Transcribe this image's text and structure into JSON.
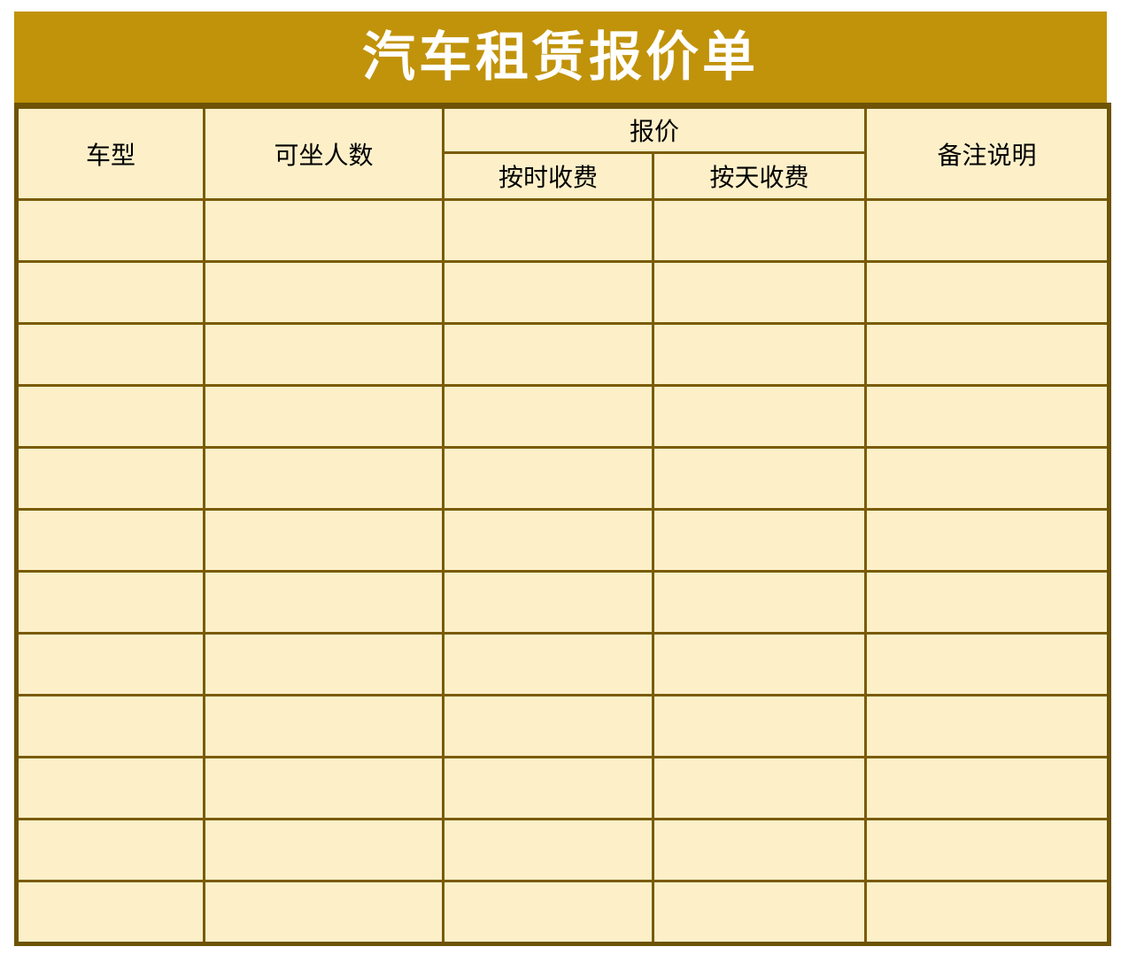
{
  "title": "汽车租赁报价单",
  "colors": {
    "band_gold": "#C1930B",
    "cell_cream": "#FDF0C9",
    "border_dark_gold": "#7A5B06",
    "outer_border": "#6E5306",
    "title_text": "#FFFFFF",
    "header_text": "#000000",
    "page_background": "#FFFFFF"
  },
  "table": {
    "headers": {
      "vehicle_type": "车型",
      "seating_capacity": "可坐人数",
      "quote_group": "报价",
      "hourly_rate": "按时收费",
      "daily_rate": "按天收费",
      "remarks": "备注说明"
    },
    "empty_row_count": 12,
    "columns_per_row": 5
  }
}
